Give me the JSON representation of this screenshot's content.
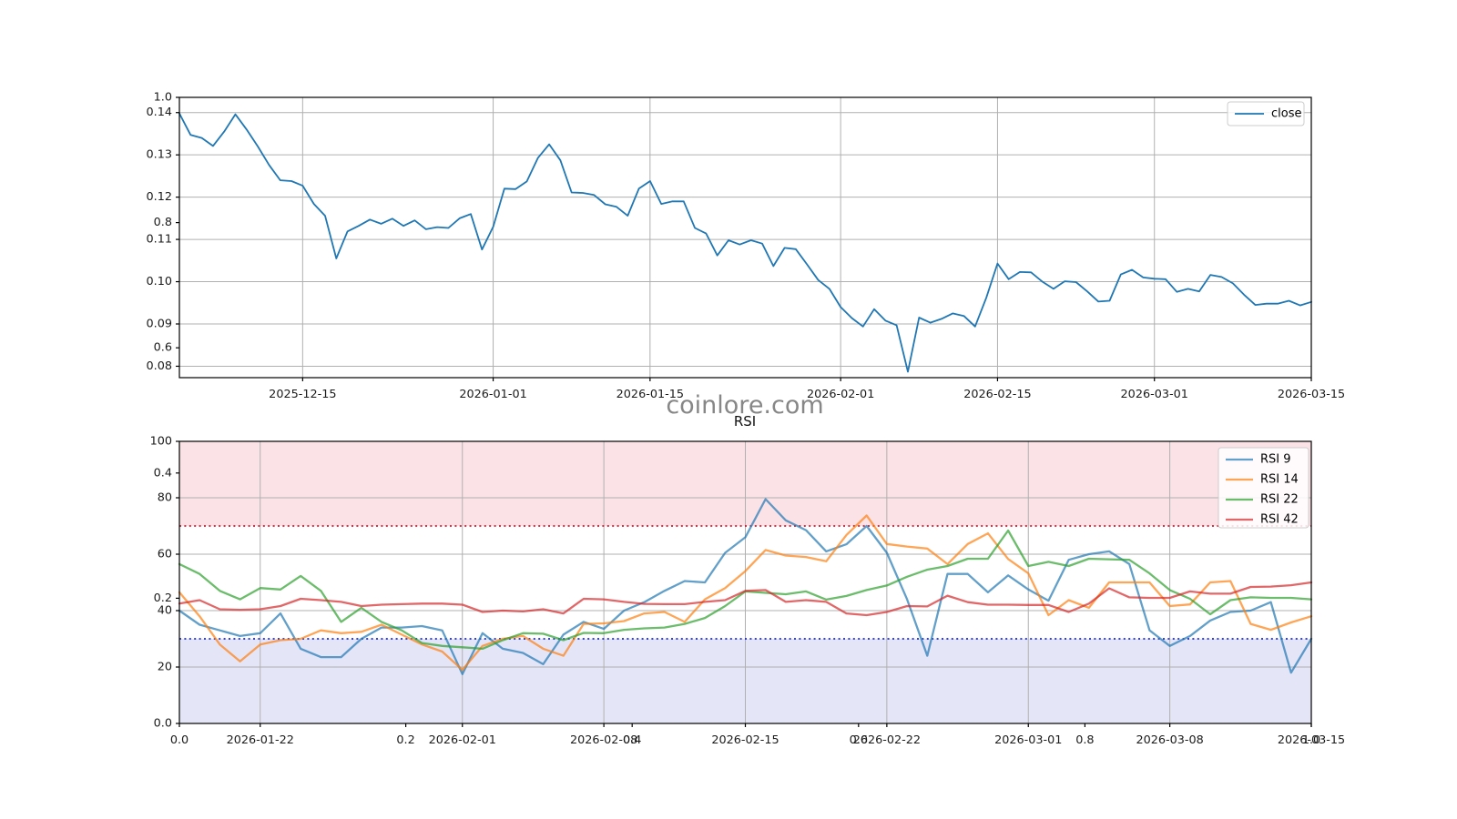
{
  "watermark": "coinlore.com",
  "colors": {
    "close_line": "#1f77b4",
    "rsi9_line": "rgba(31,119,180,0.7)",
    "rsi14_line": "rgba(255,127,14,0.7)",
    "rsi22_line": "rgba(44,160,44,0.7)",
    "rsi42_line": "rgba(214,39,40,0.7)",
    "overbought_fill": "rgba(220,20,60,0.12)",
    "oversold_fill": "rgba(40,40,200,0.12)",
    "overbought_dotted": "#dc1428",
    "oversold_dotted": "#1428dc",
    "gridline": "#b0b0b0",
    "spine": "#000000",
    "tick_text": "#1a1a1a",
    "legend_border": "#cccccc"
  },
  "ghost_axis": {
    "y_labels": [
      "1.0",
      "0.8",
      "0.6",
      "0.4",
      "0.2",
      "0.0"
    ],
    "x_labels": [
      "0.0",
      "0.2",
      "0.4",
      "0.6",
      "0.8",
      "1.0"
    ]
  },
  "chart_data": [
    {
      "type": "line",
      "title": "",
      "legend_position": "upper right",
      "grid": true,
      "start_date": "2025-12-04",
      "end_date": "2026-03-15",
      "freq": "daily",
      "ylim": [
        0.0773,
        0.1436
      ],
      "y_ticks": [
        {
          "label": "0.14",
          "v": 0.14
        },
        {
          "label": "0.13",
          "v": 0.13
        },
        {
          "label": "0.12",
          "v": 0.12
        },
        {
          "label": "0.11",
          "v": 0.11
        },
        {
          "label": "0.10",
          "v": 0.1
        },
        {
          "label": "0.09",
          "v": 0.09
        },
        {
          "label": "0.08",
          "v": 0.08
        }
      ],
      "x_ticks": [
        {
          "label": "2025-12-15",
          "f": 0.1089
        },
        {
          "label": "2026-01-01",
          "f": 0.2772
        },
        {
          "label": "2026-01-15",
          "f": 0.4158
        },
        {
          "label": "2026-02-01",
          "f": 0.5842
        },
        {
          "label": "2026-02-15",
          "f": 0.7228
        },
        {
          "label": "2026-03-01",
          "f": 0.8614
        },
        {
          "label": "2026-03-15",
          "f": 1.0
        }
      ],
      "series": [
        {
          "name": "close",
          "values": [
            0.1398,
            0.1347,
            0.134,
            0.1321,
            0.1355,
            0.1396,
            0.136,
            0.132,
            0.1276,
            0.124,
            0.1238,
            0.1227,
            0.1184,
            0.1156,
            0.1055,
            0.1119,
            0.1132,
            0.1147,
            0.1137,
            0.1149,
            0.1132,
            0.1145,
            0.1124,
            0.1129,
            0.1127,
            0.115,
            0.116,
            0.1076,
            0.113,
            0.122,
            0.1219,
            0.1237,
            0.1293,
            0.1325,
            0.1287,
            0.1211,
            0.121,
            0.1205,
            0.1183,
            0.1177,
            0.1156,
            0.122,
            0.1238,
            0.1184,
            0.119,
            0.119,
            0.1127,
            0.1114,
            0.1062,
            0.1098,
            0.1088,
            0.1098,
            0.109,
            0.1037,
            0.108,
            0.1077,
            0.1041,
            0.1004,
            0.0983,
            0.094,
            0.0914,
            0.0894,
            0.0935,
            0.0908,
            0.0897,
            0.0787,
            0.0915,
            0.0903,
            0.0912,
            0.0925,
            0.0919,
            0.0894,
            0.0962,
            0.1043,
            0.1006,
            0.1023,
            0.1022,
            0.1,
            0.0983,
            0.1001,
            0.0999,
            0.0977,
            0.0953,
            0.0955,
            0.1017,
            0.1028,
            0.101,
            0.1007,
            0.1006,
            0.0976,
            0.0983,
            0.0977,
            0.1016,
            0.1011,
            0.0996,
            0.0969,
            0.0945,
            0.0948,
            0.0948,
            0.0955,
            0.0944,
            0.0952
          ]
        }
      ]
    },
    {
      "type": "line",
      "title": "RSI",
      "legend_position": "upper right",
      "grid": true,
      "start_date": "2026-01-18",
      "end_date": "2026-03-15",
      "freq": "daily",
      "ylim": [
        0,
        100
      ],
      "overbought_level": 70,
      "oversold_level": 30,
      "y_ticks": [
        {
          "label": "100",
          "v": 100
        },
        {
          "label": "80",
          "v": 80
        },
        {
          "label": "60",
          "v": 60
        },
        {
          "label": "40",
          "v": 40
        },
        {
          "label": "20",
          "v": 20
        }
      ],
      "x_ticks": [
        {
          "label": "2026-01-22",
          "f": 0.0714
        },
        {
          "label": "2026-02-01",
          "f": 0.25
        },
        {
          "label": "2026-02-08",
          "f": 0.375
        },
        {
          "label": "2026-02-15",
          "f": 0.5
        },
        {
          "label": "2026-02-22",
          "f": 0.625
        },
        {
          "label": "2026-03-01",
          "f": 0.75
        },
        {
          "label": "2026-03-08",
          "f": 0.875
        },
        {
          "label": "2026-03-15",
          "f": 1.0
        }
      ],
      "series": [
        {
          "name": "RSI 9",
          "values": [
            40,
            35,
            33,
            31,
            32,
            39,
            26.5,
            23.5,
            23.5,
            30,
            34,
            34,
            34.5,
            33,
            17.5,
            32,
            26.5,
            25,
            21,
            31.5,
            36,
            33.5,
            40,
            43,
            47,
            50.5,
            50,
            60.5,
            66,
            79.5,
            72,
            68.5,
            61,
            63.5,
            70,
            60.5,
            44,
            24,
            53,
            53,
            46.5,
            52.5,
            47.5,
            43.5,
            58,
            60,
            61,
            56.5,
            33,
            27.5,
            31,
            36.5,
            39.5,
            40,
            43,
            18,
            30
          ]
        },
        {
          "name": "RSI 14",
          "values": [
            46.5,
            38,
            28,
            22,
            28,
            29.5,
            30,
            33,
            32,
            32.5,
            35,
            31.5,
            28,
            25.5,
            19,
            27.5,
            30,
            31,
            26.5,
            24,
            35.3,
            35.5,
            36.3,
            39,
            39.5,
            36,
            44,
            48,
            54,
            61.5,
            59.5,
            59,
            57.5,
            66.8,
            73.7,
            63.6,
            62.7,
            62,
            56.5,
            63.6,
            67.4,
            58.3,
            53.2,
            38.4,
            43.7,
            41,
            50,
            50,
            50,
            41.6,
            42.2,
            50,
            50.5,
            35.3,
            33.2,
            35.8,
            38
          ]
        },
        {
          "name": "RSI 22",
          "values": [
            56.5,
            53,
            47,
            44,
            48,
            47.5,
            52.3,
            47,
            36,
            41,
            36,
            33,
            28.5,
            27.5,
            27,
            26.5,
            29.5,
            32,
            31.8,
            29.5,
            32.1,
            32,
            33.2,
            33.7,
            34,
            35.3,
            37.4,
            41.6,
            46.8,
            46.3,
            45.8,
            46.8,
            43.9,
            45.2,
            47.3,
            48.9,
            52,
            54.5,
            55.8,
            58.4,
            58.4,
            68.4,
            55.8,
            57.3,
            55.8,
            58.4,
            58.2,
            58,
            53.2,
            47.3,
            44.2,
            38.7,
            43.7,
            44.7,
            44.5,
            44.5,
            44
          ]
        },
        {
          "name": "RSI 42",
          "values": [
            42.5,
            43.7,
            40.5,
            40.3,
            40.5,
            41.6,
            44.2,
            43.7,
            43.1,
            41.6,
            42.1,
            42.3,
            42.5,
            42.5,
            42.1,
            39.5,
            40,
            39.7,
            40.5,
            39,
            44.2,
            44,
            43.1,
            42.4,
            42.3,
            42.3,
            43.1,
            43.7,
            47,
            47.3,
            43.1,
            43.7,
            43.1,
            39,
            38.4,
            39.5,
            41.6,
            41.5,
            45.3,
            43,
            42.1,
            42.1,
            42,
            42,
            39.5,
            42.5,
            47.9,
            44.7,
            44.5,
            44.5,
            46.8,
            46,
            46,
            48.4,
            48.5,
            49,
            50
          ]
        }
      ]
    }
  ]
}
